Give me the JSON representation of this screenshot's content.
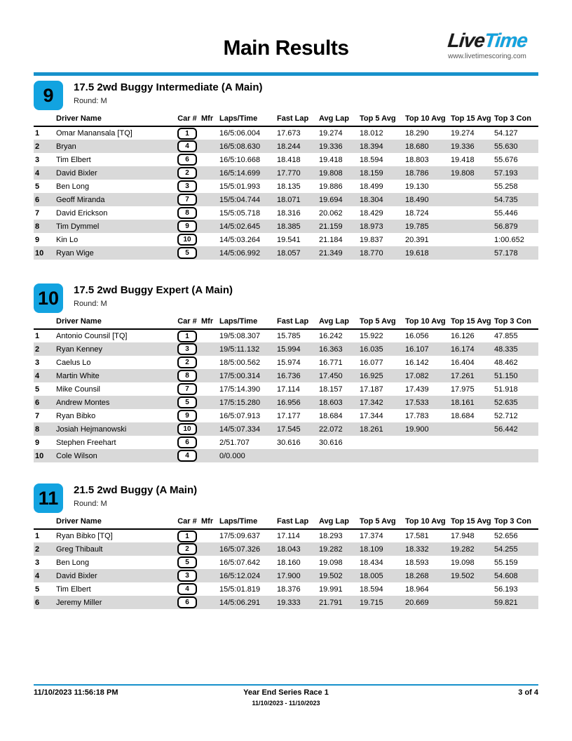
{
  "theme": {
    "accent_blue": "#1791cb",
    "accent_light_blue": "#12a3e0",
    "stripe_gray": "#d9d9d9"
  },
  "header": {
    "title": "Main Results",
    "logo_live": "Live",
    "logo_time": "Time",
    "logo_url": "www.livetimescoring.com"
  },
  "columns": [
    "Driver Name",
    "Car #",
    "Mfr",
    "Laps/Time",
    "Fast Lap",
    "Avg Lap",
    "Top 5 Avg",
    "Top 10 Avg",
    "Top 15 Avg",
    "Top 3 Con"
  ],
  "sections": [
    {
      "number": "9",
      "title": "17.5 2wd Buggy Intermediate (A Main)",
      "round_label": "Round: M",
      "rows": [
        {
          "pos": "1",
          "driver": "Omar Manansala [TQ]",
          "car": "1",
          "mfr": "",
          "laps_time": "16/5:06.004",
          "fast_lap": "17.673",
          "avg_lap": "19.274",
          "top5_avg": "18.012",
          "top10_avg": "18.290",
          "top15_avg": "19.274",
          "top3_con": "54.127"
        },
        {
          "pos": "2",
          "driver": "Bryan",
          "car": "4",
          "mfr": "",
          "laps_time": "16/5:08.630",
          "fast_lap": "18.244",
          "avg_lap": "19.336",
          "top5_avg": "18.394",
          "top10_avg": "18.680",
          "top15_avg": "19.336",
          "top3_con": "55.630"
        },
        {
          "pos": "3",
          "driver": "Tim Elbert",
          "car": "6",
          "mfr": "",
          "laps_time": "16/5:10.668",
          "fast_lap": "18.418",
          "avg_lap": "19.418",
          "top5_avg": "18.594",
          "top10_avg": "18.803",
          "top15_avg": "19.418",
          "top3_con": "55.676"
        },
        {
          "pos": "4",
          "driver": "David Bixler",
          "car": "2",
          "mfr": "",
          "laps_time": "16/5:14.699",
          "fast_lap": "17.770",
          "avg_lap": "19.808",
          "top5_avg": "18.159",
          "top10_avg": "18.786",
          "top15_avg": "19.808",
          "top3_con": "57.193"
        },
        {
          "pos": "5",
          "driver": "Ben Long",
          "car": "3",
          "mfr": "",
          "laps_time": "15/5:01.993",
          "fast_lap": "18.135",
          "avg_lap": "19.886",
          "top5_avg": "18.499",
          "top10_avg": "19.130",
          "top15_avg": "",
          "top3_con": "55.258"
        },
        {
          "pos": "6",
          "driver": "Geoff Miranda",
          "car": "7",
          "mfr": "",
          "laps_time": "15/5:04.744",
          "fast_lap": "18.071",
          "avg_lap": "19.694",
          "top5_avg": "18.304",
          "top10_avg": "18.490",
          "top15_avg": "",
          "top3_con": "54.735"
        },
        {
          "pos": "7",
          "driver": "David Erickson",
          "car": "8",
          "mfr": "",
          "laps_time": "15/5:05.718",
          "fast_lap": "18.316",
          "avg_lap": "20.062",
          "top5_avg": "18.429",
          "top10_avg": "18.724",
          "top15_avg": "",
          "top3_con": "55.446"
        },
        {
          "pos": "8",
          "driver": "Tim Dymmel",
          "car": "9",
          "mfr": "",
          "laps_time": "14/5:02.645",
          "fast_lap": "18.385",
          "avg_lap": "21.159",
          "top5_avg": "18.973",
          "top10_avg": "19.785",
          "top15_avg": "",
          "top3_con": "56.879"
        },
        {
          "pos": "9",
          "driver": "Kin Lo",
          "car": "10",
          "mfr": "",
          "laps_time": "14/5:03.264",
          "fast_lap": "19.541",
          "avg_lap": "21.184",
          "top5_avg": "19.837",
          "top10_avg": "20.391",
          "top15_avg": "",
          "top3_con": "1:00.652"
        },
        {
          "pos": "10",
          "driver": "Ryan Wige",
          "car": "5",
          "mfr": "",
          "laps_time": "14/5:06.992",
          "fast_lap": "18.057",
          "avg_lap": "21.349",
          "top5_avg": "18.770",
          "top10_avg": "19.618",
          "top15_avg": "",
          "top3_con": "57.178"
        }
      ]
    },
    {
      "number": "10",
      "title": "17.5 2wd Buggy Expert (A Main)",
      "round_label": "Round: M",
      "rows": [
        {
          "pos": "1",
          "driver": "Antonio Counsil [TQ]",
          "car": "1",
          "mfr": "",
          "laps_time": "19/5:08.307",
          "fast_lap": "15.785",
          "avg_lap": "16.242",
          "top5_avg": "15.922",
          "top10_avg": "16.056",
          "top15_avg": "16.126",
          "top3_con": "47.855"
        },
        {
          "pos": "2",
          "driver": "Ryan Kenney",
          "car": "3",
          "mfr": "",
          "laps_time": "19/5:11.132",
          "fast_lap": "15.994",
          "avg_lap": "16.363",
          "top5_avg": "16.035",
          "top10_avg": "16.107",
          "top15_avg": "16.174",
          "top3_con": "48.335"
        },
        {
          "pos": "3",
          "driver": "Caelus Lo",
          "car": "2",
          "mfr": "",
          "laps_time": "18/5:00.562",
          "fast_lap": "15.974",
          "avg_lap": "16.771",
          "top5_avg": "16.077",
          "top10_avg": "16.142",
          "top15_avg": "16.404",
          "top3_con": "48.462"
        },
        {
          "pos": "4",
          "driver": "Martin White",
          "car": "8",
          "mfr": "",
          "laps_time": "17/5:00.314",
          "fast_lap": "16.736",
          "avg_lap": "17.450",
          "top5_avg": "16.925",
          "top10_avg": "17.082",
          "top15_avg": "17.261",
          "top3_con": "51.150"
        },
        {
          "pos": "5",
          "driver": "Mike Counsil",
          "car": "7",
          "mfr": "",
          "laps_time": "17/5:14.390",
          "fast_lap": "17.114",
          "avg_lap": "18.157",
          "top5_avg": "17.187",
          "top10_avg": "17.439",
          "top15_avg": "17.975",
          "top3_con": "51.918"
        },
        {
          "pos": "6",
          "driver": "Andrew Montes",
          "car": "5",
          "mfr": "",
          "laps_time": "17/5:15.280",
          "fast_lap": "16.956",
          "avg_lap": "18.603",
          "top5_avg": "17.342",
          "top10_avg": "17.533",
          "top15_avg": "18.161",
          "top3_con": "52.635"
        },
        {
          "pos": "7",
          "driver": "Ryan Bibko",
          "car": "9",
          "mfr": "",
          "laps_time": "16/5:07.913",
          "fast_lap": "17.177",
          "avg_lap": "18.684",
          "top5_avg": "17.344",
          "top10_avg": "17.783",
          "top15_avg": "18.684",
          "top3_con": "52.712"
        },
        {
          "pos": "8",
          "driver": "Josiah  Hejmanowski",
          "car": "10",
          "mfr": "",
          "laps_time": "14/5:07.334",
          "fast_lap": "17.545",
          "avg_lap": "22.072",
          "top5_avg": "18.261",
          "top10_avg": "19.900",
          "top15_avg": "",
          "top3_con": "56.442"
        },
        {
          "pos": "9",
          "driver": "Stephen Freehart",
          "car": "6",
          "mfr": "",
          "laps_time": "2/51.707",
          "fast_lap": "30.616",
          "avg_lap": "30.616",
          "top5_avg": "",
          "top10_avg": "",
          "top15_avg": "",
          "top3_con": ""
        },
        {
          "pos": "10",
          "driver": "Cole Wilson",
          "car": "4",
          "mfr": "",
          "laps_time": "0/0.000",
          "fast_lap": "",
          "avg_lap": "",
          "top5_avg": "",
          "top10_avg": "",
          "top15_avg": "",
          "top3_con": ""
        }
      ]
    },
    {
      "number": "11",
      "title": "21.5 2wd Buggy (A Main)",
      "round_label": "Round: M",
      "rows": [
        {
          "pos": "1",
          "driver": "Ryan Bibko [TQ]",
          "car": "1",
          "mfr": "",
          "laps_time": "17/5:09.637",
          "fast_lap": "17.114",
          "avg_lap": "18.293",
          "top5_avg": "17.374",
          "top10_avg": "17.581",
          "top15_avg": "17.948",
          "top3_con": "52.656"
        },
        {
          "pos": "2",
          "driver": "Greg Thibault",
          "car": "2",
          "mfr": "",
          "laps_time": "16/5:07.326",
          "fast_lap": "18.043",
          "avg_lap": "19.282",
          "top5_avg": "18.109",
          "top10_avg": "18.332",
          "top15_avg": "19.282",
          "top3_con": "54.255"
        },
        {
          "pos": "3",
          "driver": "Ben Long",
          "car": "5",
          "mfr": "",
          "laps_time": "16/5:07.642",
          "fast_lap": "18.160",
          "avg_lap": "19.098",
          "top5_avg": "18.434",
          "top10_avg": "18.593",
          "top15_avg": "19.098",
          "top3_con": "55.159"
        },
        {
          "pos": "4",
          "driver": "David Bixler",
          "car": "3",
          "mfr": "",
          "laps_time": "16/5:12.024",
          "fast_lap": "17.900",
          "avg_lap": "19.502",
          "top5_avg": "18.005",
          "top10_avg": "18.268",
          "top15_avg": "19.502",
          "top3_con": "54.608"
        },
        {
          "pos": "5",
          "driver": "Tim Elbert",
          "car": "4",
          "mfr": "",
          "laps_time": "15/5:01.819",
          "fast_lap": "18.376",
          "avg_lap": "19.991",
          "top5_avg": "18.594",
          "top10_avg": "18.964",
          "top15_avg": "",
          "top3_con": "56.193"
        },
        {
          "pos": "6",
          "driver": "Jeremy Miller",
          "car": "6",
          "mfr": "",
          "laps_time": "14/5:06.291",
          "fast_lap": "19.333",
          "avg_lap": "21.791",
          "top5_avg": "19.715",
          "top10_avg": "20.669",
          "top15_avg": "",
          "top3_con": "59.821"
        }
      ]
    }
  ],
  "footer": {
    "printed": "11/10/2023 11:56:18 PM",
    "series": "Year End Series Race 1",
    "date_range": "11/10/2023 - 11/10/2023",
    "page": "3 of 4"
  }
}
